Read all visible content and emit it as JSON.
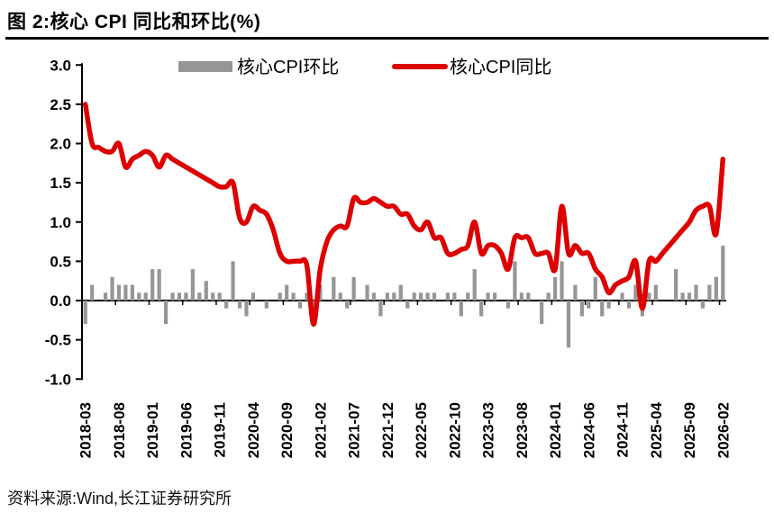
{
  "title": "图 2:核心 CPI 同比和环比(%)",
  "source_note": "资料来源:Wind,长江证券研究所",
  "legend": {
    "items": [
      {
        "label": "核心CPI环比",
        "type": "bar",
        "color": "#969696"
      },
      {
        "label": "核心CPI同比",
        "type": "line",
        "color": "#dc0000"
      }
    ]
  },
  "chart_data": {
    "type": "bar",
    "subtype": "combo-bar-line",
    "title": "核心 CPI 同比和环比(%)",
    "xlabel": "",
    "ylabel": "",
    "ylim": [
      -1.0,
      3.0
    ],
    "grid": false,
    "legend_position": "top-center",
    "y_tick_labels": [
      "3.0",
      "2.5",
      "2.0",
      "1.5",
      "1.0",
      "0.5",
      "0.0",
      "-0.5",
      "-1.0"
    ],
    "x_tick_labels": [
      "2018-03",
      "2018-08",
      "2019-01",
      "2019-06",
      "2019-11",
      "2020-04",
      "2020-09",
      "2021-02",
      "2021-07",
      "2021-12",
      "2022-05",
      "2022-10",
      "2023-03",
      "2023-08",
      "2024-01",
      "2024-06",
      "2024-11",
      "2025-04",
      "2025-09",
      "2026-02"
    ],
    "x_tick_interval": 5,
    "categories": [
      "2018-03",
      "2018-04",
      "2018-05",
      "2018-06",
      "2018-07",
      "2018-08",
      "2018-09",
      "2018-10",
      "2018-11",
      "2018-12",
      "2019-01",
      "2019-02",
      "2019-03",
      "2019-04",
      "2019-05",
      "2019-06",
      "2019-07",
      "2019-08",
      "2019-09",
      "2019-10",
      "2019-11",
      "2019-12",
      "2020-01",
      "2020-02",
      "2020-03",
      "2020-04",
      "2020-05",
      "2020-06",
      "2020-07",
      "2020-08",
      "2020-09",
      "2020-10",
      "2020-11",
      "2020-12",
      "2021-01",
      "2021-02",
      "2021-03",
      "2021-04",
      "2021-05",
      "2021-06",
      "2021-07",
      "2021-08",
      "2021-09",
      "2021-10",
      "2021-11",
      "2021-12",
      "2022-01",
      "2022-02",
      "2022-03",
      "2022-04",
      "2022-05",
      "2022-06",
      "2022-07",
      "2022-08",
      "2022-09",
      "2022-10",
      "2022-11",
      "2022-12",
      "2023-01",
      "2023-02",
      "2023-03",
      "2023-04",
      "2023-05",
      "2023-06",
      "2023-07",
      "2023-08",
      "2023-09",
      "2023-10",
      "2023-11",
      "2023-12",
      "2024-01",
      "2024-02",
      "2024-03",
      "2024-04",
      "2024-05",
      "2024-06",
      "2024-07",
      "2024-08",
      "2024-09",
      "2024-10",
      "2024-11",
      "2024-12",
      "2025-01",
      "2025-02",
      "2025-03",
      "2025-04",
      "2025-05",
      "2025-06",
      "2025-07",
      "2025-08",
      "2025-09",
      "2025-10",
      "2025-11",
      "2025-12",
      "2026-01",
      "2026-02"
    ],
    "series": [
      {
        "name": "核心CPI环比",
        "type": "bar",
        "color": "#969696",
        "values": [
          -0.3,
          0.2,
          0.0,
          0.1,
          0.3,
          0.2,
          0.2,
          0.2,
          0.1,
          0.1,
          0.4,
          0.4,
          -0.3,
          0.1,
          0.1,
          0.1,
          0.4,
          0.1,
          0.25,
          0.1,
          0.1,
          -0.1,
          0.5,
          -0.1,
          -0.2,
          0.1,
          0.0,
          -0.1,
          0.0,
          0.1,
          0.2,
          0.1,
          -0.1,
          0.1,
          -0.2,
          0.2,
          0.0,
          0.3,
          0.1,
          -0.1,
          0.3,
          0.0,
          0.2,
          0.1,
          -0.2,
          0.1,
          0.1,
          0.2,
          -0.1,
          0.1,
          0.1,
          0.1,
          0.1,
          0.0,
          0.1,
          0.1,
          -0.2,
          0.1,
          0.4,
          -0.2,
          0.1,
          0.1,
          0.0,
          -0.1,
          0.5,
          0.1,
          0.1,
          0.0,
          -0.3,
          0.1,
          0.3,
          0.5,
          -0.6,
          0.2,
          -0.2,
          -0.1,
          0.3,
          -0.2,
          -0.1,
          0.0,
          0.1,
          -0.1,
          0.2,
          -0.2,
          0.1,
          0.2,
          0.0,
          0.0,
          0.4,
          0.1,
          0.1,
          0.2,
          -0.1,
          0.2,
          0.3,
          0.7
        ]
      },
      {
        "name": "核心CPI同比",
        "type": "line",
        "color": "#dc0000",
        "values": [
          2.5,
          2.0,
          1.95,
          1.9,
          1.9,
          2.0,
          1.7,
          1.8,
          1.85,
          1.9,
          1.85,
          1.7,
          1.85,
          1.8,
          1.75,
          1.7,
          1.65,
          1.6,
          1.55,
          1.5,
          1.45,
          1.45,
          1.5,
          1.05,
          1.0,
          1.2,
          1.15,
          1.1,
          0.9,
          0.6,
          0.5,
          0.5,
          0.5,
          0.45,
          -0.3,
          0.4,
          0.75,
          0.9,
          0.95,
          0.95,
          1.3,
          1.25,
          1.25,
          1.3,
          1.25,
          1.2,
          1.2,
          1.1,
          1.1,
          0.95,
          0.9,
          1.0,
          0.8,
          0.8,
          0.6,
          0.6,
          0.65,
          0.7,
          1.0,
          0.6,
          0.7,
          0.7,
          0.6,
          0.4,
          0.8,
          0.8,
          0.8,
          0.6,
          0.6,
          0.6,
          0.4,
          1.2,
          0.6,
          0.7,
          0.6,
          0.6,
          0.4,
          0.3,
          0.1,
          0.2,
          0.25,
          0.3,
          0.5,
          -0.1,
          0.5,
          0.5,
          0.6,
          0.7,
          0.8,
          0.9,
          1.0,
          1.15,
          1.2,
          1.2,
          0.85,
          1.8
        ]
      }
    ]
  }
}
